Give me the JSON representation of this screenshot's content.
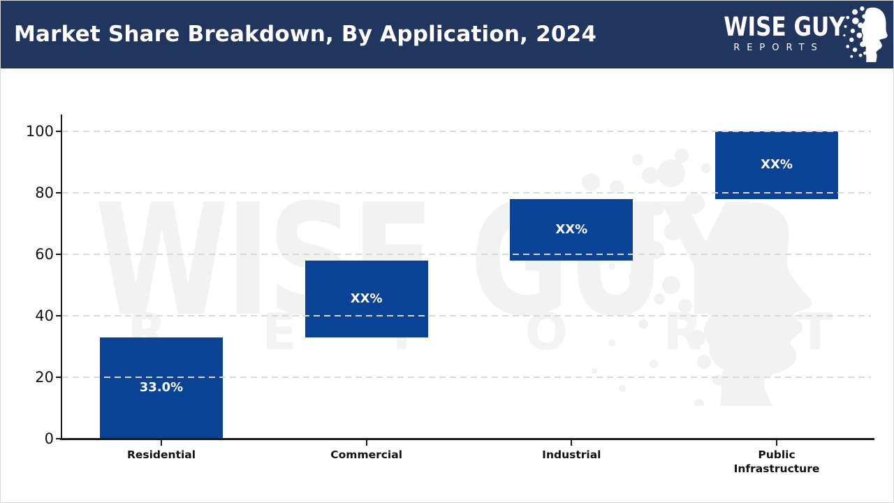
{
  "header": {
    "title": "Market Share Breakdown, By Application, 2024",
    "bg_color": "#21365f",
    "logo": {
      "line1": "WISE GUY",
      "line2": "REPORTS"
    }
  },
  "watermark": {
    "line1": "WISE GUY",
    "line2": "REPORTS"
  },
  "chart_data": {
    "type": "bar",
    "subtype": "floating-segment-waterfall",
    "title": "Market Share Breakdown, By Application, 2024",
    "categories": [
      "Residential",
      "Commercial",
      "Industrial",
      "Public Infrastructure"
    ],
    "bars": [
      {
        "category": "Residential",
        "start": 0,
        "end": 33,
        "label": "33.0%"
      },
      {
        "category": "Commercial",
        "start": 33,
        "end": 58,
        "label": "XX%"
      },
      {
        "category": "Industrial",
        "start": 58,
        "end": 78,
        "label": "XX%"
      },
      {
        "category": "Public Infrastructure",
        "start": 78,
        "end": 100,
        "label": "XX%"
      }
    ],
    "ylim": [
      0,
      100
    ],
    "yticks": [
      0,
      20,
      40,
      60,
      80,
      100
    ],
    "grid": "horizontal-dashed",
    "legend": "none",
    "bar_color": "#0a4296",
    "bar_label_color": "#ffffff",
    "axis_color": "#1a1a1a",
    "gridline_color": "#d9d9d9"
  }
}
